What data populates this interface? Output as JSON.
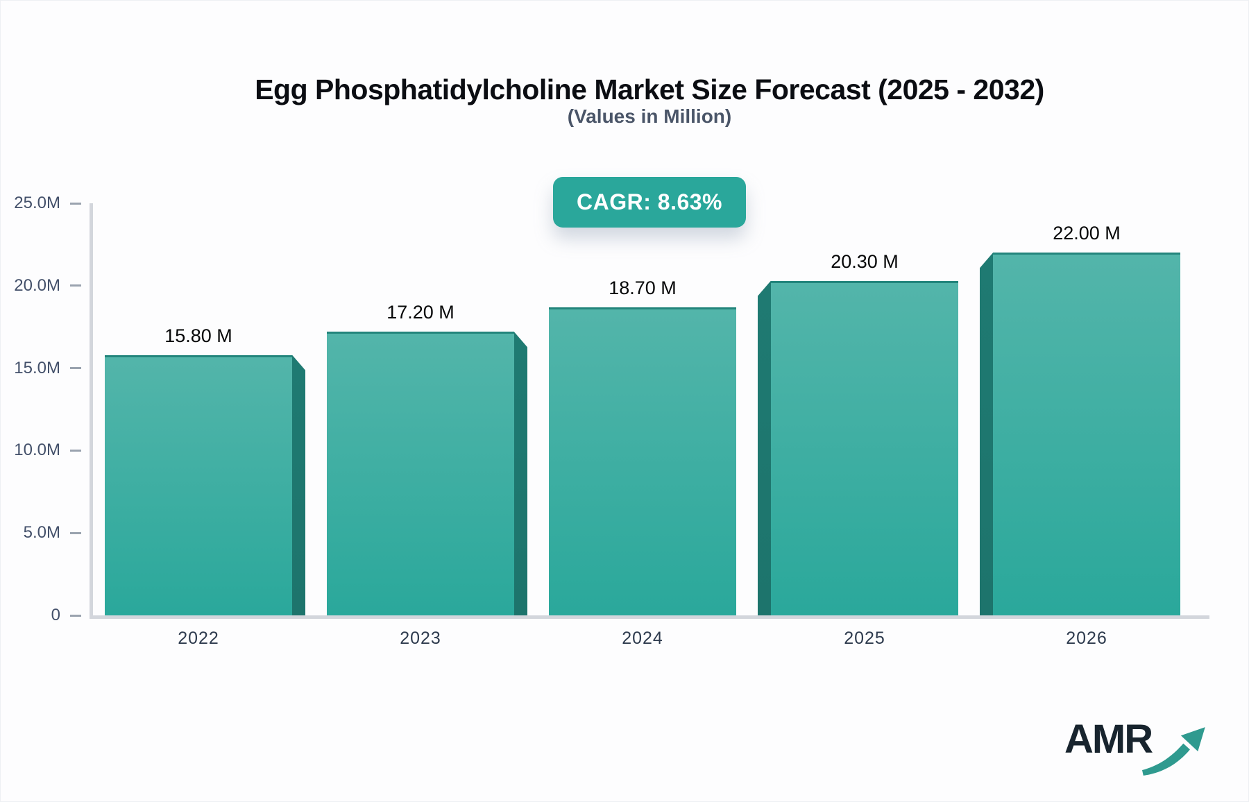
{
  "header": {
    "title": "Egg Phosphatidylcholine Market Size Forecast (2025 - 2032)",
    "subtitle": "(Values in Million)",
    "cagr_badge": "CAGR: 8.63%"
  },
  "chart_data": {
    "type": "bar",
    "title": "Egg Phosphatidylcholine Market Size Forecast (2025 - 2032)",
    "subtitle": "(Values in Million)",
    "unit": "Million",
    "cagr_percent": 8.63,
    "categories": [
      "2022",
      "2023",
      "2024",
      "2025",
      "2026"
    ],
    "values": [
      15.8,
      17.2,
      18.7,
      20.3,
      22.0
    ],
    "value_labels": [
      "15.80 M",
      "17.20 M",
      "18.70 M",
      "20.30 M",
      "22.00 M"
    ],
    "xlabel": "",
    "ylabel": "",
    "ylim": [
      0,
      25
    ],
    "y_ticks": [
      {
        "value": 25,
        "label": "25.0M"
      },
      {
        "value": 20,
        "label": "20.0M"
      },
      {
        "value": 15,
        "label": "15.0M"
      },
      {
        "value": 10,
        "label": "10.0M"
      },
      {
        "value": 5,
        "label": "5.0M"
      },
      {
        "value": 0,
        "label": "0"
      }
    ],
    "bar_3d_side": [
      "right",
      "right",
      "none",
      "left",
      "left"
    ],
    "grid": "off",
    "legend": "none"
  },
  "logo": {
    "text": "AMR"
  },
  "colors": {
    "accent_teal": "#2aa79b",
    "badge_bg": "#2aa79b",
    "badge_text": "#ffffff",
    "bar_gradient_top": "#53b5aa",
    "bar_gradient_bottom": "#2aa89b",
    "bar_top_edge": "#23857c",
    "bar_side_panel": "#1f7a72",
    "axis_line": "#d3d6dc",
    "tick_mark": "#9aa3af",
    "y_label_text": "#43506a",
    "x_label_text": "#2e3b4e",
    "value_label_text": "#050607",
    "title_text": "#0b0d12",
    "subtitle_text": "#4a5568",
    "logo_text": "#18242e",
    "logo_arrow": "#2f9a8f",
    "background": "#fdfdfe"
  }
}
